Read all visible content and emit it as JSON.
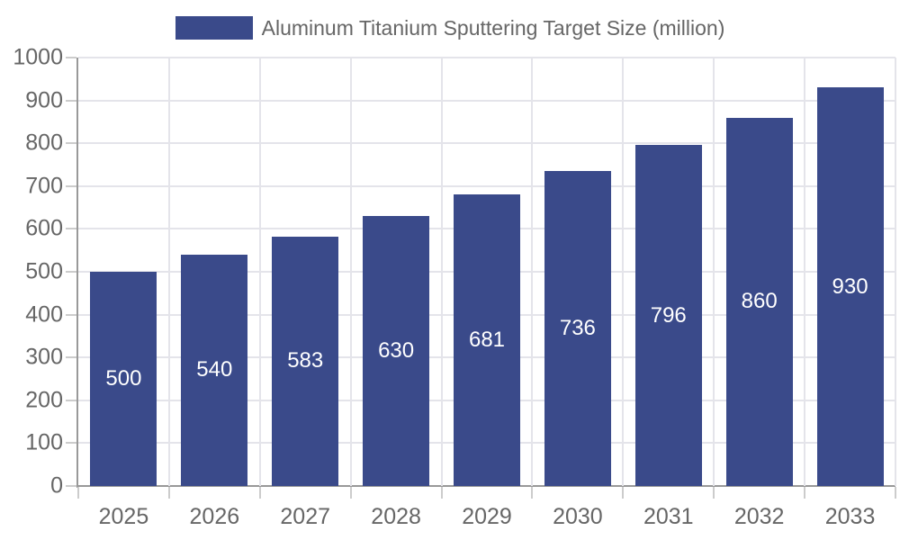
{
  "chart_data": {
    "type": "bar",
    "title": "Aluminum Titanium Sputtering Target Size (million)",
    "categories": [
      "2025",
      "2026",
      "2027",
      "2028",
      "2029",
      "2030",
      "2031",
      "2032",
      "2033"
    ],
    "values": [
      500,
      540,
      583,
      630,
      681,
      736,
      796,
      860,
      930
    ],
    "value_labels": [
      "500",
      "540",
      "583",
      "630",
      "681",
      "736",
      "796",
      "860",
      "930"
    ],
    "xlabel": "",
    "ylabel": "",
    "ylim": [
      0,
      1000
    ],
    "ytick_interval": 100,
    "yticks": [
      "0",
      "100",
      "200",
      "300",
      "400",
      "500",
      "600",
      "700",
      "800",
      "900",
      "1000"
    ],
    "grid": "on",
    "legend_position": "top",
    "colors": {
      "bar": "#3A4A8A",
      "bar_label": "#FFFFFF",
      "axis_line": "#999999",
      "tick": "#CCCCCC",
      "grid_line": "#E4E4EA",
      "axis_text": "#666666",
      "legend_text": "#666666",
      "background": "#FFFFFF"
    }
  }
}
